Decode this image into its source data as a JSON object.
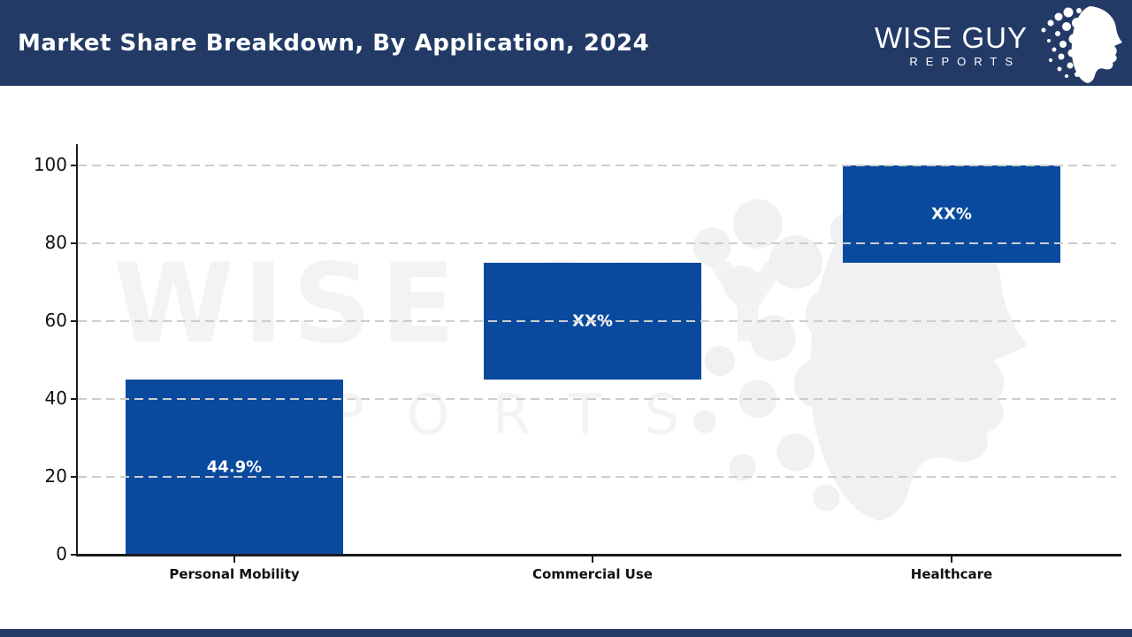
{
  "header": {
    "title": "Market Share Breakdown, By Application, 2024",
    "logo": {
      "wordmark": "WISE GUY",
      "subtext": "REPORTS",
      "icon": "dotted-face-profile"
    }
  },
  "watermark": {
    "wordmark": "WISE GUY",
    "subtext": "REPORTS",
    "icon": "dotted-face-profile"
  },
  "colors": {
    "header_bg": "#233a66",
    "footer_bg": "#233a66",
    "bar": "#0a4a9e",
    "bar_label": "#ffffff",
    "grid": "#cdcdcd",
    "axis": "#1a1a1a",
    "watermark": "#f3f3f3"
  },
  "chart_data": {
    "type": "bar",
    "subtype": "waterfall",
    "title": "Market Share Breakdown, By Application, 2024",
    "categories": [
      "Personal Mobility",
      "Commercial Use",
      "Healthcare"
    ],
    "series": [
      {
        "name": "Market Share %",
        "segments": [
          {
            "category": "Personal Mobility",
            "start": 0,
            "end": 44.9,
            "label": "44.9%"
          },
          {
            "category": "Commercial Use",
            "start": 45,
            "end": 75,
            "label": "XX%"
          },
          {
            "category": "Healthcare",
            "start": 75,
            "end": 100,
            "label": "XX%"
          }
        ]
      }
    ],
    "xlabel": "",
    "ylabel": "",
    "ylim": [
      0,
      100
    ],
    "yticks": [
      0,
      20,
      40,
      60,
      80,
      100
    ],
    "grid": "horizontal-dashed-over-bars",
    "legend": "none"
  }
}
